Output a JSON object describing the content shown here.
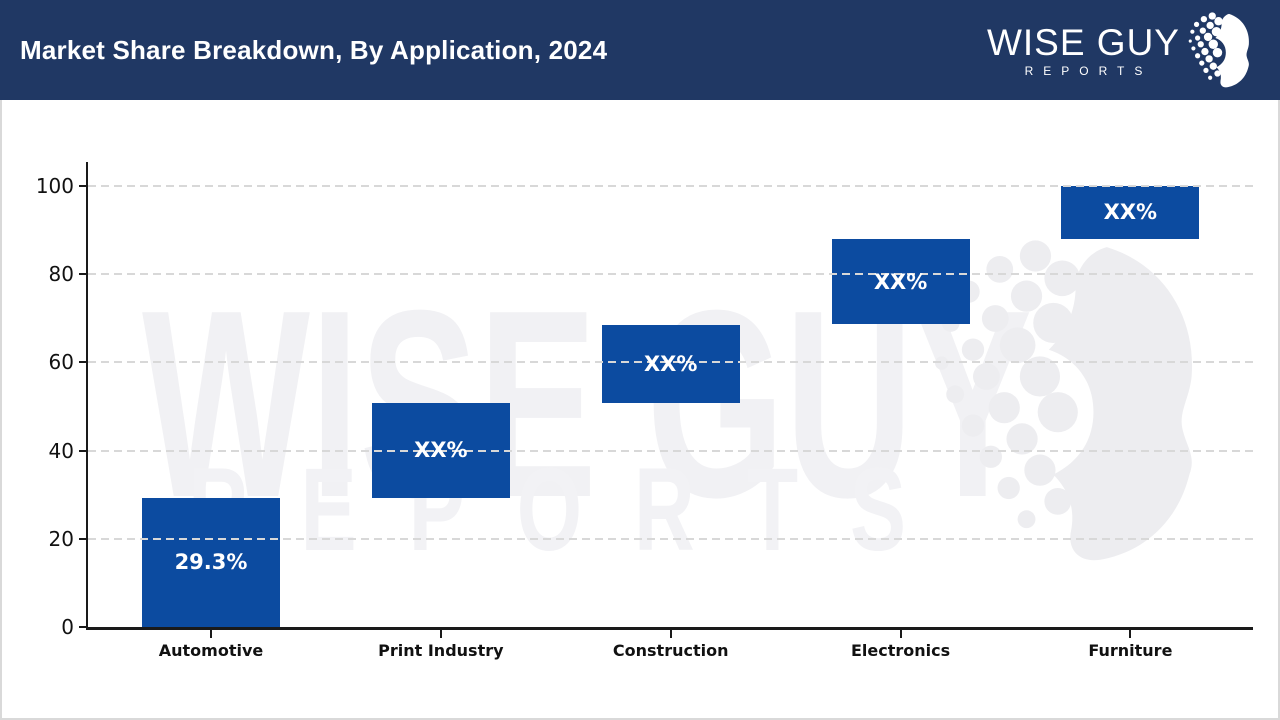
{
  "header": {
    "title": "Market Share Breakdown, By Application, 2024",
    "bg_color": "#203864",
    "logo": {
      "wordmark": "WISE GUY",
      "subtext": "REPORTS"
    }
  },
  "watermark": {
    "line1": "WISE GUY",
    "line2": "REPORTS"
  },
  "chart_data": {
    "type": "bar",
    "subtype": "floating-waterfall",
    "title": "Market Share Breakdown, By Application, 2024",
    "xlabel": "",
    "ylabel": "",
    "ylim": [
      0,
      105
    ],
    "yticks": [
      0,
      20,
      40,
      60,
      80,
      100
    ],
    "grid": "horizontal dashed",
    "legend": "none",
    "bar_color": "#0c4ba0",
    "label_color": "#ffffff",
    "categories": [
      "Automotive",
      "Print Industry",
      "Construction",
      "Electronics",
      "Furniture"
    ],
    "bars": [
      {
        "category": "Automotive",
        "start": 0,
        "end": 29.3,
        "label": "29.3%"
      },
      {
        "category": "Print Industry",
        "start": 29.3,
        "end": 50.8,
        "label": "XX%"
      },
      {
        "category": "Construction",
        "start": 50.9,
        "end": 68.4,
        "label": "XX%"
      },
      {
        "category": "Electronics",
        "start": 68.6,
        "end": 88.0,
        "label": "XX%"
      },
      {
        "category": "Furniture",
        "start": 88.0,
        "end": 100.0,
        "label": "XX%"
      }
    ]
  }
}
